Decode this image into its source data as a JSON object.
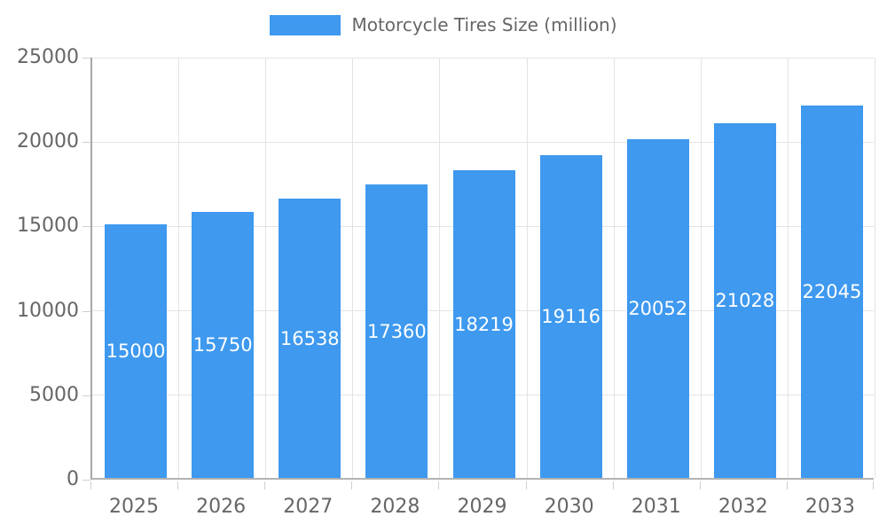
{
  "chart_data": {
    "type": "bar",
    "title": "",
    "xlabel": "",
    "ylabel": "",
    "categories": [
      "2025",
      "2026",
      "2027",
      "2028",
      "2029",
      "2030",
      "2031",
      "2032",
      "2033"
    ],
    "series": [
      {
        "name": "Motorcycle Tires Size (million)",
        "values": [
          15000,
          15750,
          16538,
          17360,
          18219,
          19116,
          20052,
          21028,
          22045
        ]
      }
    ],
    "bar_value_labels": [
      "15000",
      "15750",
      "16538",
      "17360",
      "18219",
      "19116",
      "20052",
      "21028",
      "22045"
    ],
    "ylim": [
      0,
      25000
    ],
    "yticks": [
      0,
      5000,
      10000,
      15000,
      20000,
      25000
    ],
    "ytick_labels": [
      "0",
      "5000",
      "10000",
      "15000",
      "20000",
      "25000"
    ],
    "grid": true,
    "legend": {
      "position": "top",
      "label": "Motorcycle Tires Size (million)"
    },
    "colors": {
      "bar": "#3E99EF",
      "bar_label": "#FFFFFF",
      "axis_text": "#666666",
      "grid_line": "#E3E3E3",
      "axis_line": "#B3B3B3",
      "tick": "#CFCFCF",
      "background": "#FFFFFF"
    }
  }
}
